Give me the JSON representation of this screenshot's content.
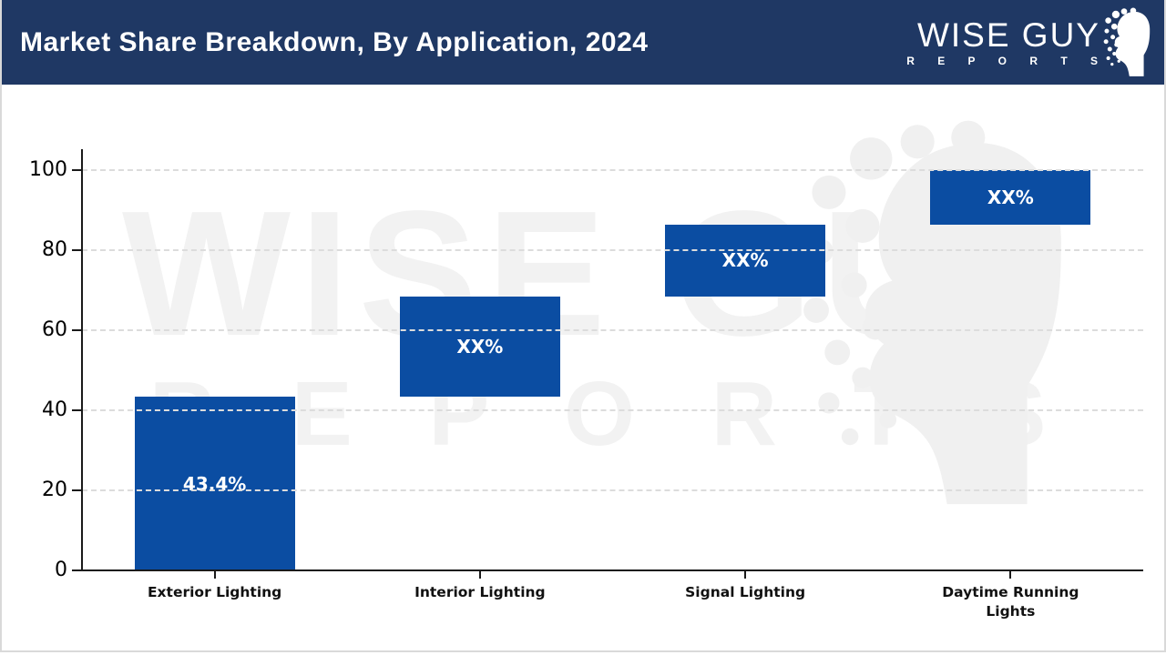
{
  "header": {
    "title": "Market Share Breakdown, By Application, 2024",
    "bg_color": "#1f3864",
    "logo": {
      "wordmark": "WISE GUY",
      "subtext": "R E P O R T S"
    }
  },
  "watermark": {
    "line1": "WISE GU",
    "line2": "R E P O R T S"
  },
  "chart_data": {
    "type": "bar",
    "subtype": "floating-waterfall",
    "title": "Market Share Breakdown, By Application, 2024",
    "categories": [
      "Exterior Lighting",
      "Interior Lighting",
      "Signal Lighting",
      "Daytime Running Lights"
    ],
    "segments": [
      {
        "category": "Exterior Lighting",
        "start": 0,
        "end": 43.4,
        "label": "43.4%"
      },
      {
        "category": "Interior Lighting",
        "start": 43.4,
        "end": 68.4,
        "label": "XX%"
      },
      {
        "category": "Signal Lighting",
        "start": 68.4,
        "end": 86.4,
        "label": "XX%"
      },
      {
        "category": "Daytime Running Lights",
        "start": 86.4,
        "end": 100,
        "label": "XX%"
      }
    ],
    "yticks": [
      0,
      20,
      40,
      60,
      80,
      100
    ],
    "ylim": [
      0,
      105
    ],
    "grid": "horizontal-dashed-over-bars",
    "legend": "none",
    "bar_color": "#0b4da2",
    "bar_label_color": "#ffffff",
    "axis_color": "#1a1a1a",
    "grid_color": "#dcdcdc"
  }
}
